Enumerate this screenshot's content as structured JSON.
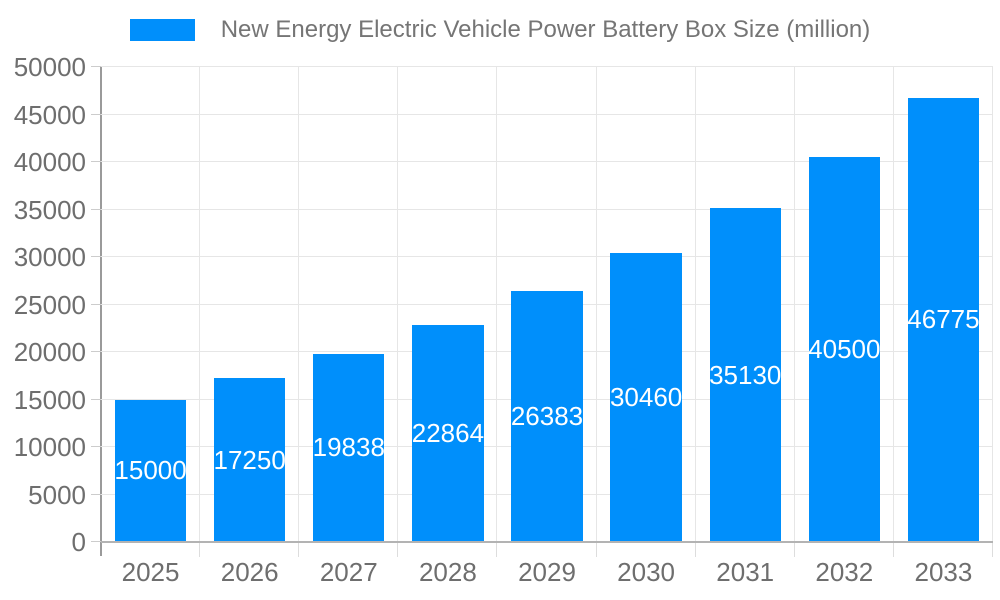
{
  "legend": {
    "label": "New Energy Electric Vehicle Power Battery Box Size (million)"
  },
  "chart_data": {
    "type": "bar",
    "title": "New Energy Electric Vehicle Power Battery Box Size (million)",
    "categories": [
      "2025",
      "2026",
      "2027",
      "2028",
      "2029",
      "2030",
      "2031",
      "2032",
      "2033"
    ],
    "values": [
      15000,
      17250,
      19838,
      22864,
      26383,
      30460,
      35130,
      40500,
      46775
    ],
    "xlabel": "",
    "ylabel": "",
    "ylim": [
      0,
      50000
    ],
    "ytick_step": 5000,
    "ytick_labels": [
      "0",
      "5000",
      "10000",
      "15000",
      "20000",
      "25000",
      "30000",
      "35000",
      "40000",
      "45000",
      "50000"
    ],
    "grid": true,
    "legend_position": "top-center",
    "value_labels": "inside-center",
    "colors": {
      "bar": "#008FFB",
      "grid": "#e6e6e6",
      "x_axis_line": "#b3b3b3",
      "y_axis_line": "#9a9a9a",
      "tick": "#cccccc",
      "axis_text": "#6e6e6e",
      "title_text": "#757575",
      "bar_label_text": "#ffffff",
      "background": "#ffffff"
    }
  }
}
